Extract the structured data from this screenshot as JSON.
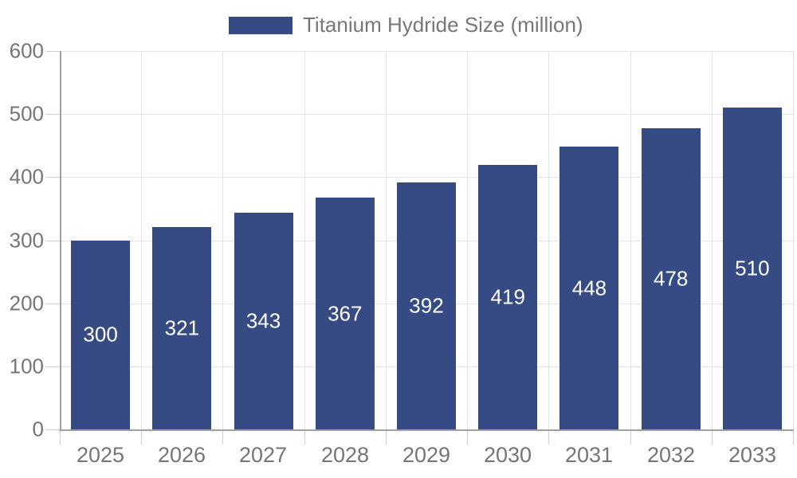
{
  "legend": {
    "label": "Titanium Hydride Size (million)"
  },
  "colors": {
    "bar": "#364a84",
    "grid": "#e4e4e4",
    "axis": "#a0a0a0",
    "tick_mark": "#c8cdd6",
    "tick_text": "#757575",
    "legend_text": "#777777",
    "value_label": "#ffffff",
    "background": "#ffffff"
  },
  "chart_data": {
    "type": "bar",
    "title": "",
    "series": [
      {
        "name": "Titanium Hydride Size (million)",
        "values": [
          300,
          321,
          343,
          367,
          392,
          419,
          448,
          478,
          510
        ]
      }
    ],
    "categories": [
      "2025",
      "2026",
      "2027",
      "2028",
      "2029",
      "2030",
      "2031",
      "2032",
      "2033"
    ],
    "xlabel": "",
    "ylabel": "",
    "ylim": [
      0,
      600
    ],
    "ytick_interval": 100,
    "yticks": [
      0,
      100,
      200,
      300,
      400,
      500,
      600
    ],
    "grid": true,
    "value_labels": "inside-center",
    "legend_position": "top"
  }
}
